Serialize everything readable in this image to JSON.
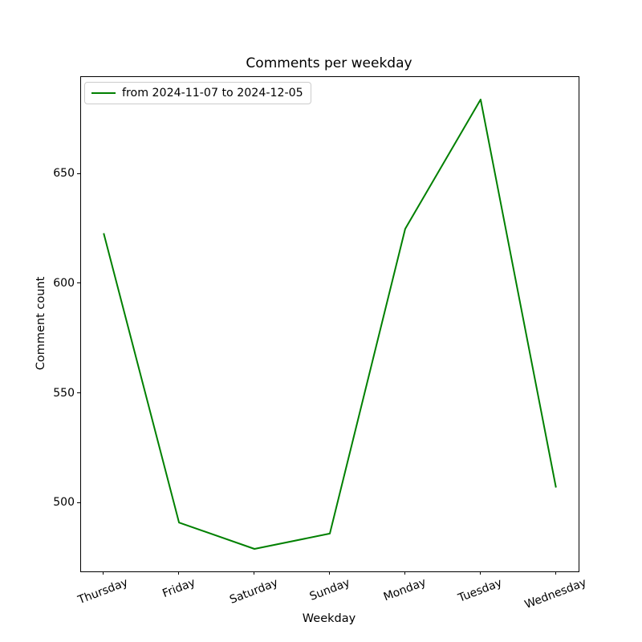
{
  "chart_data": {
    "type": "line",
    "title": "Comments per weekday",
    "xlabel": "Weekday",
    "ylabel": "Comment count",
    "categories": [
      "Thursday",
      "Friday",
      "Saturday",
      "Sunday",
      "Monday",
      "Tuesday",
      "Wednesday"
    ],
    "series": [
      {
        "name": "from 2024-11-07 to 2024-12-05",
        "color": "#008000",
        "values": [
          623,
          491,
          479,
          486,
          625,
          684,
          507
        ]
      }
    ],
    "yticks": [
      500,
      550,
      600,
      650
    ],
    "ylim": [
      468.75,
      694.25
    ],
    "xlim": [
      -0.3,
      6.3
    ],
    "grid": false,
    "legend_position": "upper left",
    "x_tick_rotation_deg": 21
  }
}
